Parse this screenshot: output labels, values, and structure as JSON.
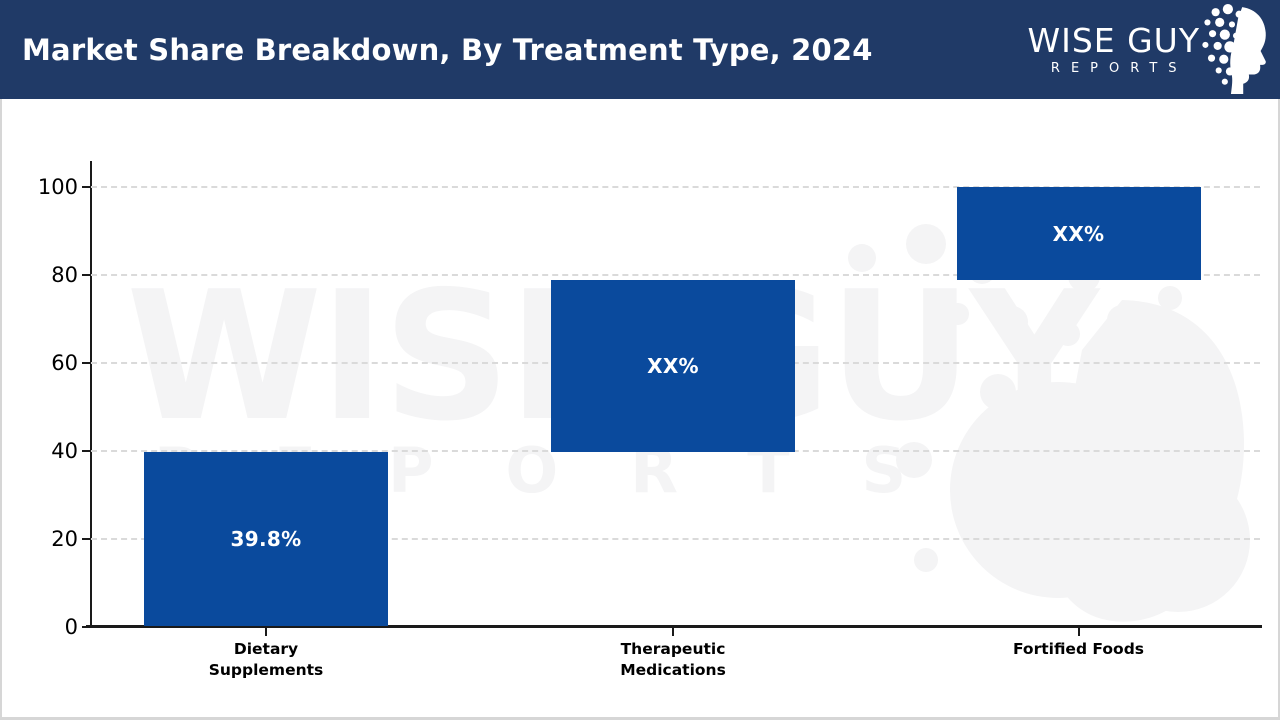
{
  "header": {
    "title": "Market Share Breakdown, By Treatment Type, 2024",
    "logo": {
      "brand": "WISE GUY",
      "sub": "REPORTS"
    }
  },
  "watermark": {
    "line1": "WISE GUY",
    "line2": "REPORTS"
  },
  "colors": {
    "header_bg": "#203A67",
    "bar": "#0A4A9D",
    "grid": "#DADADA",
    "axis": "#1A1A1A",
    "bar_label": "#FFFFFF",
    "watermark": "#F4F4F5"
  },
  "chart_data": {
    "type": "bar",
    "subtype": "waterfall-stacked-percentage",
    "title": "Market Share Breakdown, By Treatment Type, 2024",
    "xlabel": "",
    "ylabel": "",
    "categories": [
      "Dietary Supplements",
      "Therapeutic Medications",
      "Fortified Foods"
    ],
    "category_label_lines": [
      [
        "Dietary",
        "Supplements"
      ],
      [
        "Therapeutic",
        "Medications"
      ],
      [
        "Fortified Foods"
      ]
    ],
    "segments": [
      {
        "category": "Dietary Supplements",
        "start": 0,
        "end": 39.8,
        "label": "39.8%"
      },
      {
        "category": "Therapeutic Medications",
        "start": 39.8,
        "end": 78.8,
        "label": "XX%"
      },
      {
        "category": "Fortified Foods",
        "start": 78.8,
        "end": 100,
        "label": "XX%"
      }
    ],
    "ylim": [
      0,
      106
    ],
    "yticks": [
      0,
      20,
      40,
      60,
      80,
      100
    ],
    "grid": "horizontal-dashed",
    "legend": "none"
  }
}
